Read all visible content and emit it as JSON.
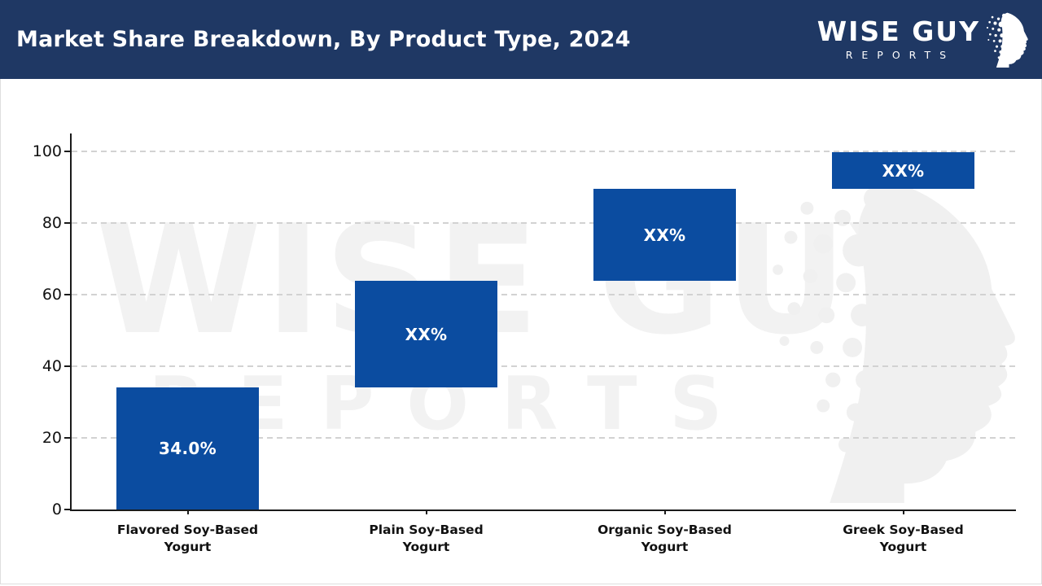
{
  "header": {
    "title": "Market Share Breakdown, By Product Type, 2024",
    "logo": {
      "line1": "WISE GUY",
      "line2": "REPORTS",
      "head_icon": "dotted-head-profile-icon"
    }
  },
  "watermark": {
    "line1": "WISE GUY",
    "line2": "REPORTS",
    "head_icon": "dotted-head-profile-watermark"
  },
  "chart_data": {
    "type": "bar",
    "variant": "waterfall",
    "title": "Market Share Breakdown, By Product Type, 2024",
    "xlabel": "",
    "ylabel": "",
    "ylim": [
      0,
      105
    ],
    "yticks": [
      0,
      20,
      40,
      60,
      80,
      100
    ],
    "grid": "horizontal-dashed",
    "legend": "none",
    "bar_color": "#0b4ca0",
    "value_label_color": "#ffffff",
    "categories": [
      "Flavored Soy-Based Yogurt",
      "Plain Soy-Based Yogurt",
      "Organic Soy-Based Yogurt",
      "Greek Soy-Based Yogurt"
    ],
    "segments": [
      {
        "slug": "flavored-soy-based-yogurt",
        "category": "Flavored Soy-Based Yogurt",
        "category_lines": [
          "Flavored Soy-Based",
          "Yogurt"
        ],
        "start": 0,
        "end": 34,
        "value_label": "34.0%"
      },
      {
        "slug": "plain-soy-based-yogurt",
        "category": "Plain Soy-Based Yogurt",
        "category_lines": [
          "Plain Soy-Based",
          "Yogurt"
        ],
        "start": 34,
        "end": 63.8,
        "value_label": "XX%"
      },
      {
        "slug": "organic-soy-based-yogurt",
        "category": "Organic Soy-Based Yogurt",
        "category_lines": [
          "Organic Soy-Based",
          "Yogurt"
        ],
        "start": 63.8,
        "end": 89.5,
        "value_label": "XX%"
      },
      {
        "slug": "greek-soy-based-yogurt",
        "category": "Greek Soy-Based Yogurt",
        "category_lines": [
          "Greek Soy-Based",
          "Yogurt"
        ],
        "start": 89.5,
        "end": 99.8,
        "value_label": "XX%"
      }
    ]
  },
  "colors": {
    "header_bg": "#1f3864",
    "bar": "#0b4ca0",
    "grid_line": "#d2d2d2",
    "watermark": "#f1f1f1",
    "axis": "#1a1a1a",
    "page_bg": "#ffffff"
  }
}
